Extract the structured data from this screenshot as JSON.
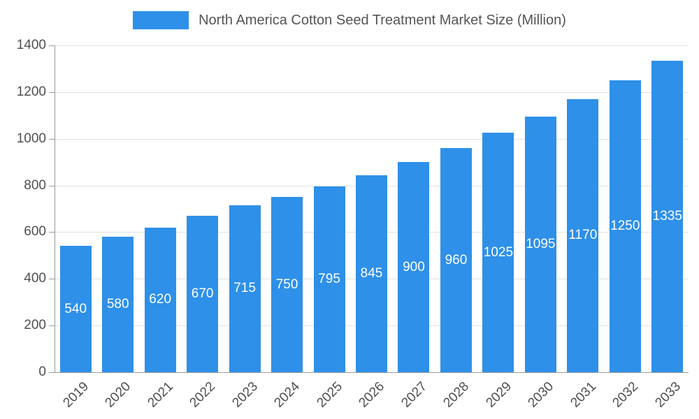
{
  "chart_data": {
    "type": "bar",
    "title": "North America Cotton Seed Treatment Market Size (Million)",
    "categories": [
      "2019",
      "2020",
      "2021",
      "2022",
      "2023",
      "2024",
      "2025",
      "2026",
      "2027",
      "2028",
      "2029",
      "2030",
      "2031",
      "2032",
      "2033"
    ],
    "values": [
      540,
      580,
      620,
      670,
      715,
      750,
      795,
      845,
      900,
      960,
      1025,
      1095,
      1170,
      1250,
      1335
    ],
    "xlabel": "",
    "ylabel": "",
    "ylim": [
      0,
      1400
    ],
    "ytick_step": 200,
    "yticks": [
      0,
      200,
      400,
      600,
      800,
      1000,
      1200,
      1400
    ],
    "grid": true,
    "legend_position": "top",
    "bar_color": "#2E90E9",
    "value_label_color": "#ffffff",
    "value_label_position": "center"
  },
  "legend": {
    "label": "North America Cotton Seed Treatment Market Size (Million)"
  }
}
